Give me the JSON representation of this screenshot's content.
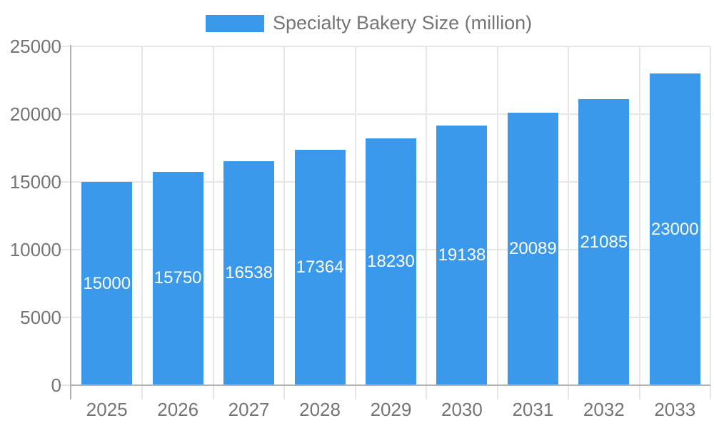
{
  "chart_data": {
    "type": "bar",
    "title": "Specialty Bakery Size (million)",
    "legend": {
      "position": "top",
      "label": "Specialty Bakery Size (million)"
    },
    "categories": [
      "2025",
      "2026",
      "2027",
      "2028",
      "2029",
      "2030",
      "2031",
      "2032",
      "2033"
    ],
    "values": [
      15000,
      15750,
      16538,
      17364,
      18230,
      19138,
      20089,
      21085,
      23000
    ],
    "value_labels": [
      "15000",
      "15750",
      "16538",
      "17364",
      "18230",
      "19138",
      "20089",
      "21085",
      "23000"
    ],
    "xlabel": "",
    "ylabel": "",
    "ylim": [
      0,
      25000
    ],
    "yticks": [
      0,
      5000,
      10000,
      15000,
      20000,
      25000
    ],
    "grid": true,
    "colors": {
      "bar": "#3b99ec",
      "axis_text": "#757575",
      "value_text": "#ffffff",
      "gridline": "#e6e6e6",
      "axis_line": "#b3b3b3",
      "background": "#ffffff"
    }
  }
}
